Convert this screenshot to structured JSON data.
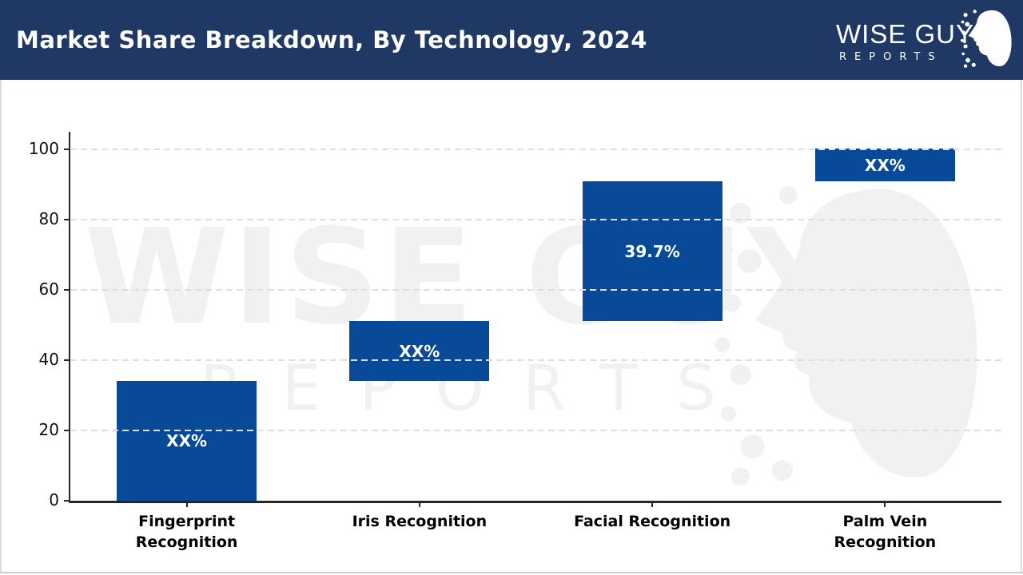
{
  "header": {
    "title": "Market Share Breakdown, By Technology, 2024"
  },
  "logo": {
    "line1": "WISE GUY",
    "line2": "REPORTS"
  },
  "watermark": {
    "line1": "WISE GUY",
    "line2": "REPORTS"
  },
  "chart_data": {
    "type": "bar",
    "subtype": "floating-segment-breakdown",
    "title": "Market Share Breakdown, By Technology, 2024",
    "categories": [
      "Fingerprint\nRecognition",
      "Iris Recognition",
      "Facial Recognition",
      "Palm Vein\nRecognition"
    ],
    "segments": [
      {
        "category": "Fingerprint Recognition",
        "start": 0,
        "end": 34.1,
        "value": 34.1,
        "value_label": "XX%"
      },
      {
        "category": "Iris Recognition",
        "start": 34.1,
        "end": 51.1,
        "value": 17.0,
        "value_label": "XX%"
      },
      {
        "category": "Facial Recognition",
        "start": 51.1,
        "end": 90.8,
        "value": 39.7,
        "value_label": "39.7%"
      },
      {
        "category": "Palm Vein Recognition",
        "start": 90.8,
        "end": 100.2,
        "value": 9.4,
        "value_label": "XX%"
      }
    ],
    "yticks": [
      0,
      20,
      40,
      60,
      80,
      100
    ],
    "ylim": [
      0,
      105
    ],
    "grid": "horizontal-dashed",
    "legend": null,
    "colors": {
      "bar": "#084a97",
      "bar_label": "#ffffff",
      "grid": "#dedede",
      "axis": "#262626",
      "tick_label": "#111111",
      "header_bg": "#1f3864",
      "header_text": "#ffffff",
      "watermark": "#f1f1f4"
    }
  }
}
